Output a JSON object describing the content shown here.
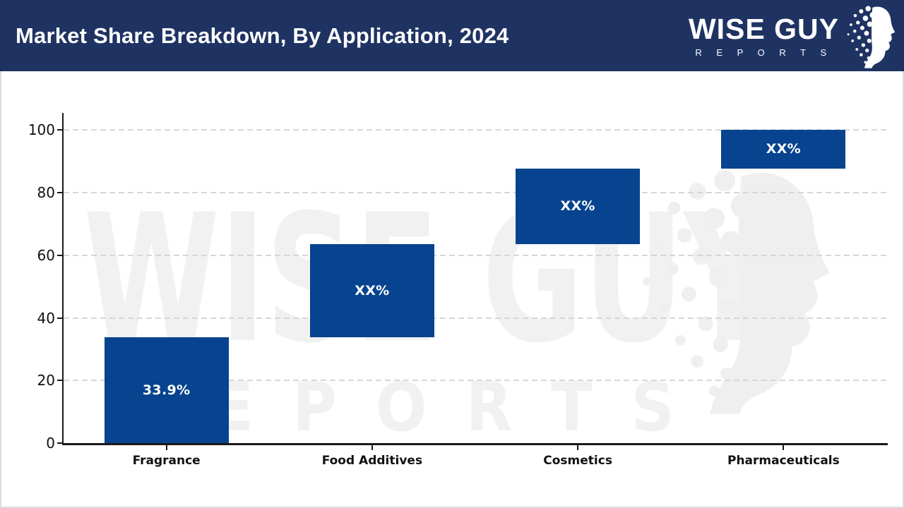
{
  "page": {
    "background": "#ffffff",
    "border_color": "#dcdcdc"
  },
  "header": {
    "background": "#1f3363",
    "title": "Market Share Breakdown, By Application, 2024",
    "title_color": "#ffffff",
    "logo": {
      "line1": "WISE GUY",
      "line2": "R E P O R T S",
      "head_icon": "dotted-head-profile-icon",
      "color": "#ffffff"
    }
  },
  "watermark": {
    "line1": "WISE GUY",
    "line2": "R E P O R T S",
    "text_color": "#f1f1f2",
    "head_color": "#efefef"
  },
  "chart_data": {
    "type": "bar",
    "subtype": "waterfall-floating-bars",
    "title": "Market Share Breakdown, By Application, 2024",
    "xlabel": "",
    "ylabel": "",
    "categories": [
      "Fragrance",
      "Food Additives",
      "Cosmetics",
      "Pharmaceuticals"
    ],
    "segments": [
      {
        "category": "Fragrance",
        "start": 0,
        "end": 33.9,
        "label": "33.9%"
      },
      {
        "category": "Food Additives",
        "start": 33.9,
        "end": 63.5,
        "label": "XX%"
      },
      {
        "category": "Cosmetics",
        "start": 63.5,
        "end": 87.8,
        "label": "XX%"
      },
      {
        "category": "Pharmaceuticals",
        "start": 87.8,
        "end": 100,
        "label": "XX%"
      }
    ],
    "yticks": [
      0,
      20,
      40,
      60,
      80,
      100
    ],
    "ylim": [
      0,
      105.5
    ],
    "grid": true,
    "grid_style": "dashed",
    "legend": "none",
    "bar_color": "#07438e",
    "bar_label_color": "#ffffff",
    "gridline_color": "#d6d6d6",
    "axis_color": "#1a1a1a",
    "tick_label_color": "#111111"
  }
}
